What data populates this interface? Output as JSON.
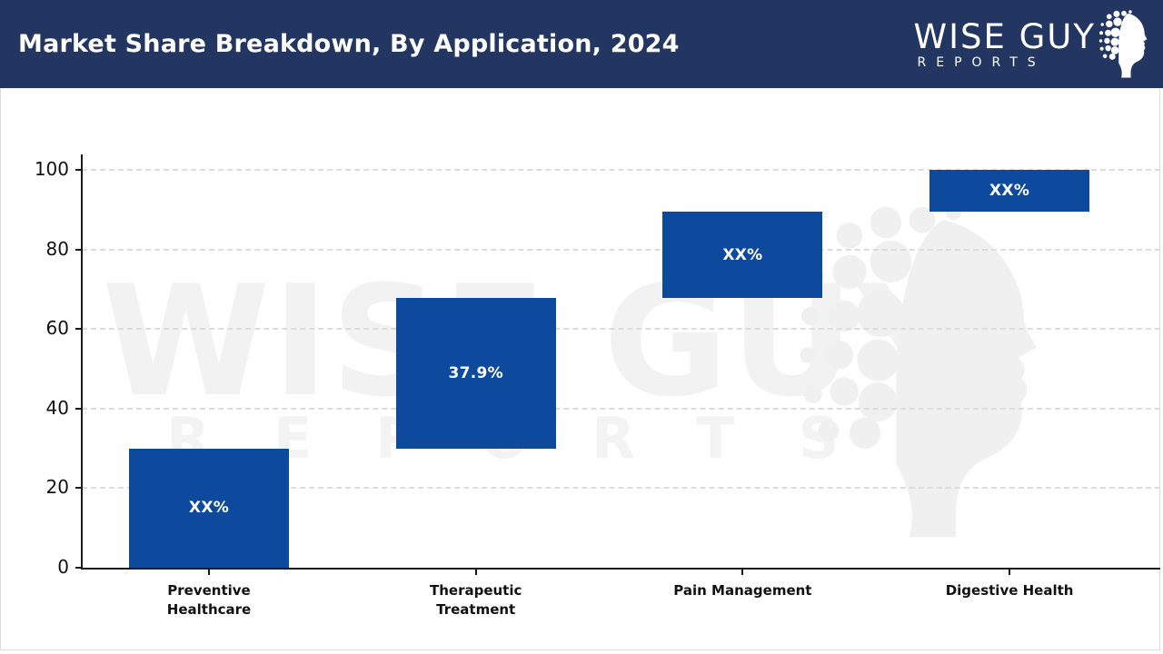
{
  "header": {
    "title": "Market Share Breakdown, By Application, 2024",
    "logo": {
      "line1": "WISE GUY",
      "line2": "REPORTS"
    }
  },
  "watermark": {
    "line1": "WISE GUY",
    "line2": "REPORTS"
  },
  "theme": {
    "header_bg": "#223661",
    "bar_color": "#0d4a9e",
    "grid_color": "#dcdcdc",
    "axis_color": "#1a1a1a",
    "card_border": "#dcdcdc",
    "watermark_color": "#f2f2f2",
    "bar_label_color": "#ffffff"
  },
  "chart_data": {
    "type": "bar",
    "variant": "floating-segment-waterfall",
    "title": "Market Share Breakdown, By Application, 2024",
    "xlabel": "",
    "ylabel": "",
    "categories": [
      "Preventive Healthcare",
      "Therapeutic Treatment",
      "Pain Management",
      "Digestive Health"
    ],
    "category_lines": [
      [
        "Preventive",
        "Healthcare"
      ],
      [
        "Therapeutic",
        "Treatment"
      ],
      [
        "Pain Management"
      ],
      [
        "Digestive Health"
      ]
    ],
    "segments": [
      {
        "category": "Preventive Healthcare",
        "start": 0,
        "end": 30,
        "size": 30,
        "label": "XX%"
      },
      {
        "category": "Therapeutic Treatment",
        "start": 30,
        "end": 67.9,
        "size": 37.9,
        "label": "37.9%"
      },
      {
        "category": "Pain Management",
        "start": 67.9,
        "end": 89.4,
        "size": 21.5,
        "label": "XX%"
      },
      {
        "category": "Digestive Health",
        "start": 89.4,
        "end": 100,
        "size": 10.6,
        "label": "XX%"
      }
    ],
    "ylim": [
      0,
      100
    ],
    "yticks": [
      0,
      20,
      40,
      60,
      80,
      100
    ],
    "grid": {
      "horizontal": true,
      "style": "dashed"
    },
    "legend": null
  }
}
